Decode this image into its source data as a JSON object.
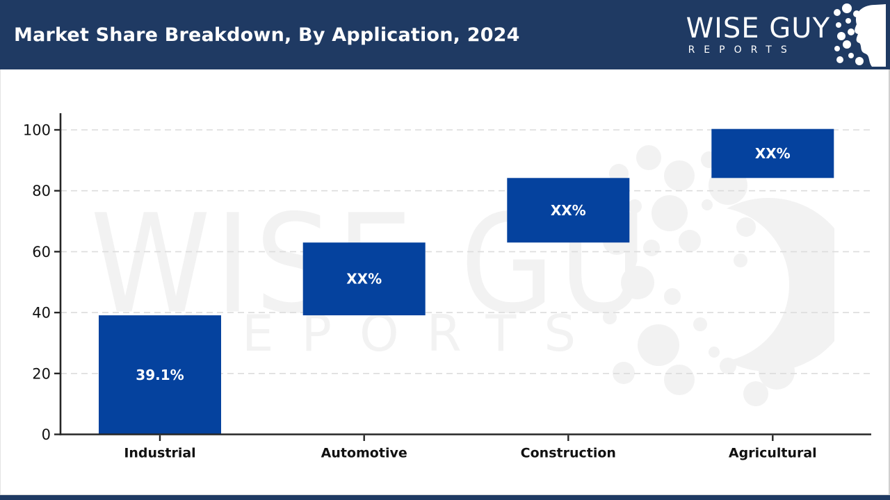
{
  "header": {
    "title": "Market Share Breakdown, By Application, 2024",
    "logo": {
      "line1": "WISE GUY",
      "line2": "REPORTS"
    }
  },
  "watermark": {
    "line1": "WISE GUY",
    "line2": "REPORTS"
  },
  "colors": {
    "header_bg": "#1f3a63",
    "footer_bg": "#1f3a63",
    "bar": "#05429e",
    "grid": "#dcdcdc",
    "axis": "#262626",
    "tick_label": "#111111",
    "bar_label": "#ffffff",
    "watermark": "#f2f2f2"
  },
  "chart_data": {
    "type": "bar",
    "subtype": "floating-waterfall",
    "title": "Market Share Breakdown, By Application, 2024",
    "categories": [
      "Industrial",
      "Automotive",
      "Construction",
      "Agricultural"
    ],
    "segments": [
      {
        "category": "Industrial",
        "start": 0,
        "end": 39.1,
        "label": "39.1%"
      },
      {
        "category": "Automotive",
        "start": 39.1,
        "end": 63,
        "label": "XX%"
      },
      {
        "category": "Construction",
        "start": 63,
        "end": 84.2,
        "label": "XX%"
      },
      {
        "category": "Agricultural",
        "start": 84.2,
        "end": 100.3,
        "label": "XX%"
      }
    ],
    "xlabel": "",
    "ylabel": "",
    "ylim": [
      0,
      105
    ],
    "yticks": [
      0,
      20,
      40,
      60,
      80,
      100
    ],
    "grid": "horizontal-dashed",
    "legend": "none",
    "bar_color": "#05429e",
    "value_label_color": "#ffffff"
  }
}
